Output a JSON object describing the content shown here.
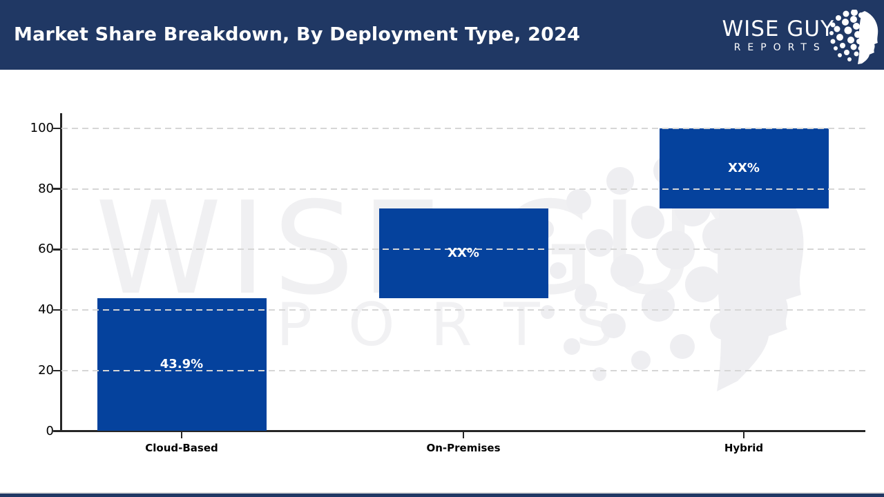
{
  "header": {
    "title": "Market Share Breakdown, By Deployment Type, 2024",
    "logo": {
      "line1": "WISE GUY",
      "line2": "REPORTS"
    }
  },
  "watermark": {
    "line1": "WISE GUY",
    "line2": "REPORTS"
  },
  "colors": {
    "header_bg": "#203864",
    "bar_fill": "#05429d",
    "bar_label": "#ffffff",
    "grid": "#d6d6d6",
    "axis": "#262626",
    "tick_text": "#000000",
    "watermark": "#f0f0f2"
  },
  "chart_data": {
    "type": "bar",
    "subtype": "waterfall",
    "title": "Market Share Breakdown, By Deployment Type, 2024",
    "xlabel": "",
    "ylabel": "",
    "categories": [
      "Cloud-Based",
      "On-Premises",
      "Hybrid"
    ],
    "segments": [
      {
        "category": "Cloud-Based",
        "start": 0,
        "end": 43.9,
        "label": "43.9%"
      },
      {
        "category": "On-Premises",
        "start": 43.9,
        "end": 73.5,
        "label": "XX%"
      },
      {
        "category": "Hybrid",
        "start": 73.5,
        "end": 100,
        "label": "XX%"
      }
    ],
    "yticks": [
      0,
      20,
      40,
      60,
      80,
      100
    ],
    "ylim": [
      0,
      105
    ],
    "grid": "horizontal-dashed",
    "legend": "none"
  }
}
